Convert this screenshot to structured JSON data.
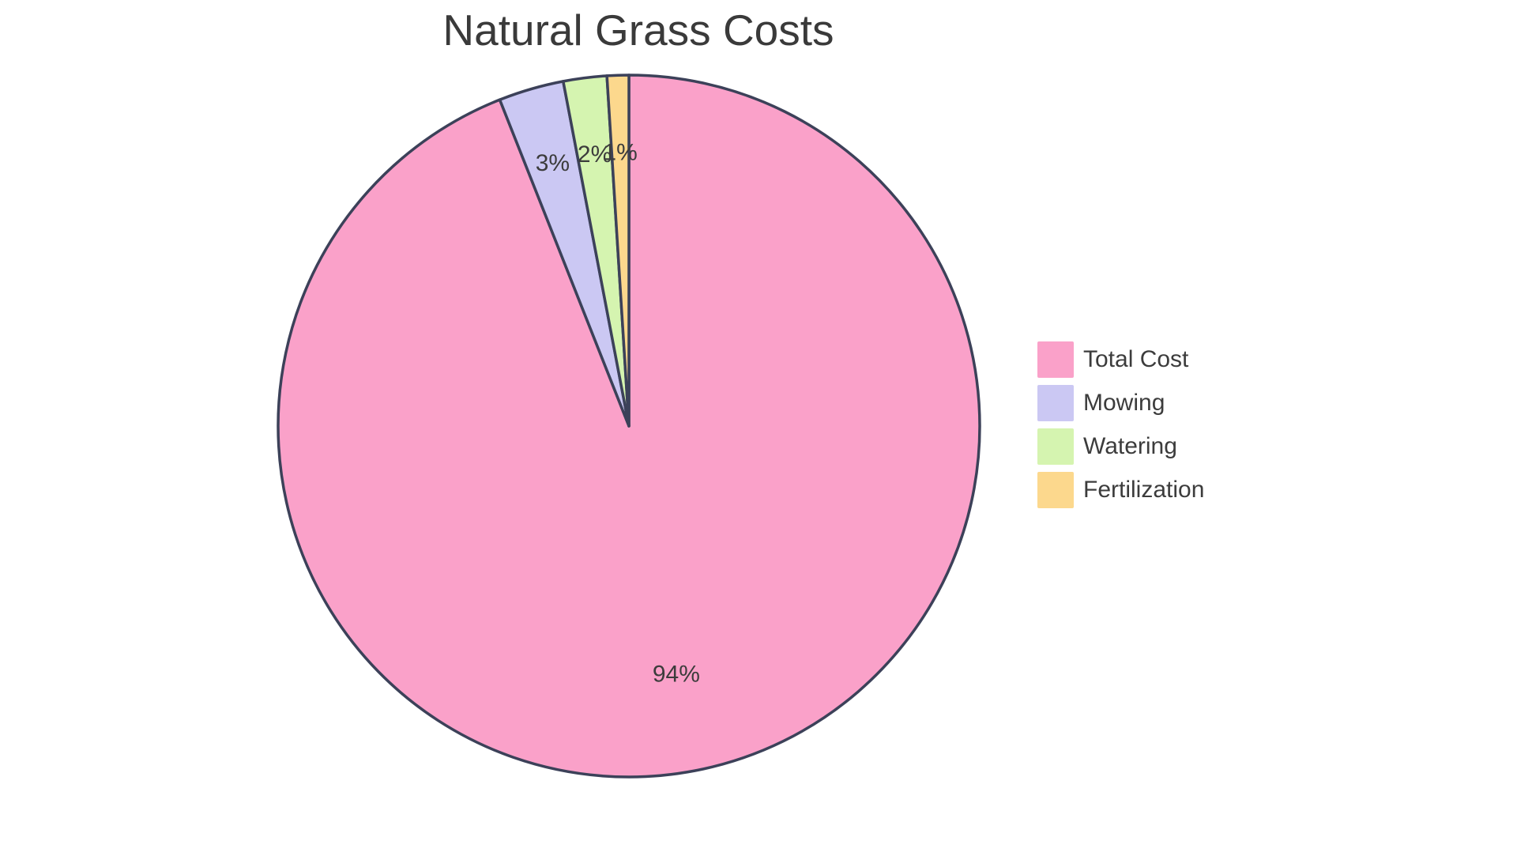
{
  "title": "Natural Grass Costs",
  "chart_data": {
    "type": "pie",
    "title": "Natural Grass Costs",
    "labels": [
      "Total Cost",
      "Mowing",
      "Watering",
      "Fertilization"
    ],
    "values": [
      94,
      3,
      2,
      1
    ],
    "percent_labels": [
      "94%",
      "3%",
      "2%",
      "1%"
    ],
    "slice_colors": [
      "#FAA1C9",
      "#CBC8F3",
      "#D5F4B0",
      "#FCD88D"
    ],
    "slice_border_color": "#3C4159",
    "label_text_color": "#3c3c3c",
    "title_color": "#3a3a3a",
    "background_color": "#ffffff",
    "direction": "clockwise",
    "start_angle_deg": 0,
    "legend_position": "right",
    "legend": {
      "items": [
        {
          "label": "Total Cost",
          "color": "#FAA1C9"
        },
        {
          "label": "Mowing",
          "color": "#CBC8F3"
        },
        {
          "label": "Watering",
          "color": "#D5F4B0"
        },
        {
          "label": "Fertilization",
          "color": "#FCD88D"
        }
      ]
    }
  }
}
